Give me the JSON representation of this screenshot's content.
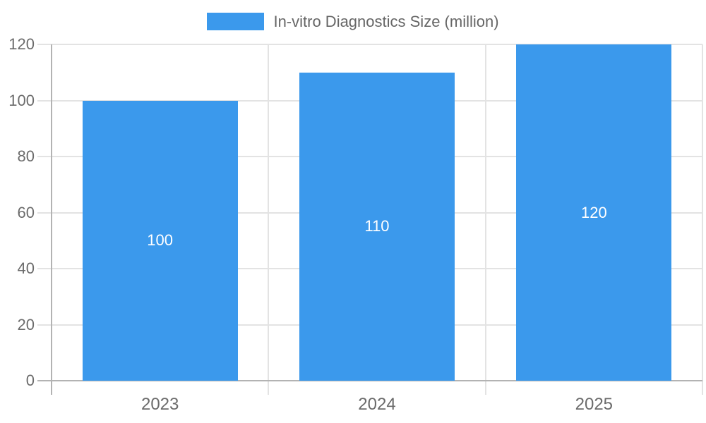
{
  "chart_data": {
    "type": "bar",
    "title": "",
    "legend_label": "In-vitro Diagnostics Size (million)",
    "legend_position": "top",
    "categories": [
      "2023",
      "2024",
      "2025"
    ],
    "series": [
      {
        "name": "In-vitro Diagnostics Size (million)",
        "values": [
          100,
          110,
          120
        ]
      }
    ],
    "value_labels": [
      "100",
      "110",
      "120"
    ],
    "xlabel": "",
    "ylabel": "",
    "ylim": [
      0,
      120
    ],
    "yticks": [
      0,
      20,
      40,
      60,
      80,
      100,
      120
    ],
    "grid": true,
    "colors": {
      "bar": "#3B99EC",
      "grid": "#E3E3E3",
      "axis": "#B3B3B3",
      "tick_text": "#6B6B6B",
      "legend_text": "#666666",
      "value_label": "#FFFFFF",
      "background": "#FFFFFF"
    }
  }
}
